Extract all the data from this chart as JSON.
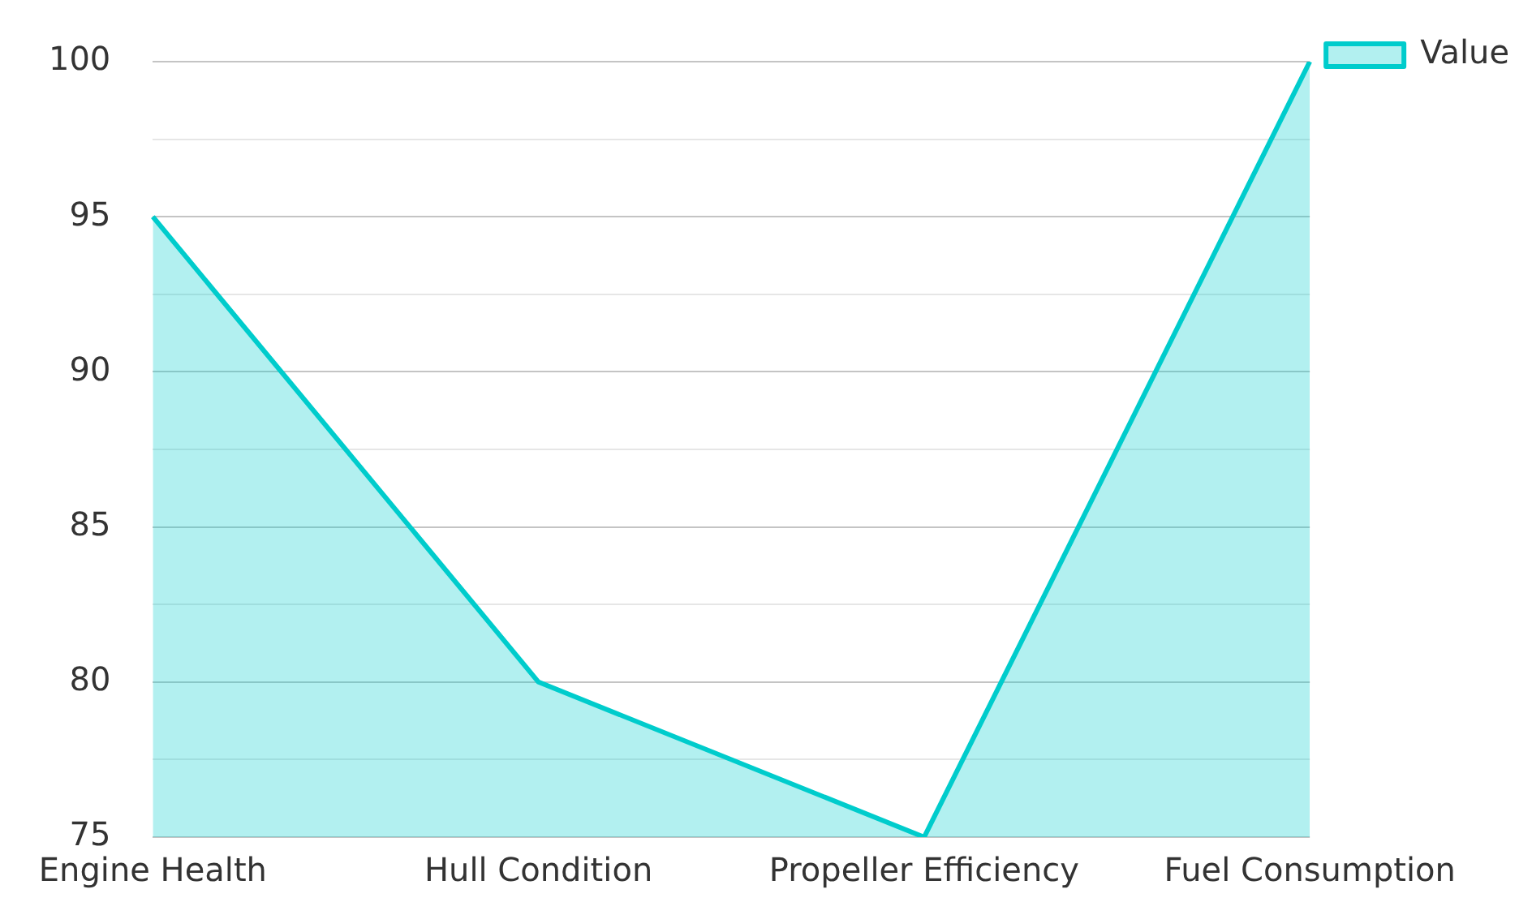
{
  "chart_data": {
    "type": "area",
    "categories": [
      "Engine Health",
      "Hull Condition",
      "Propeller Efficiency",
      "Fuel Consumption"
    ],
    "series": [
      {
        "name": "Value",
        "color": "#00cccc",
        "values": [
          95,
          80,
          75,
          100
        ]
      }
    ],
    "ylim": [
      75,
      100
    ],
    "yticks": [
      75,
      {
        "value": 77.5,
        "label": null
      },
      80,
      {
        "value": 82.5,
        "label": null
      },
      85,
      {
        "value": 87.5,
        "label": null
      },
      90,
      {
        "value": 92.5,
        "label": null
      },
      95,
      {
        "value": 97.5,
        "label": null
      },
      100
    ],
    "grid": "y",
    "legend": "top right",
    "marker": "none",
    "line_style": "solid"
  }
}
